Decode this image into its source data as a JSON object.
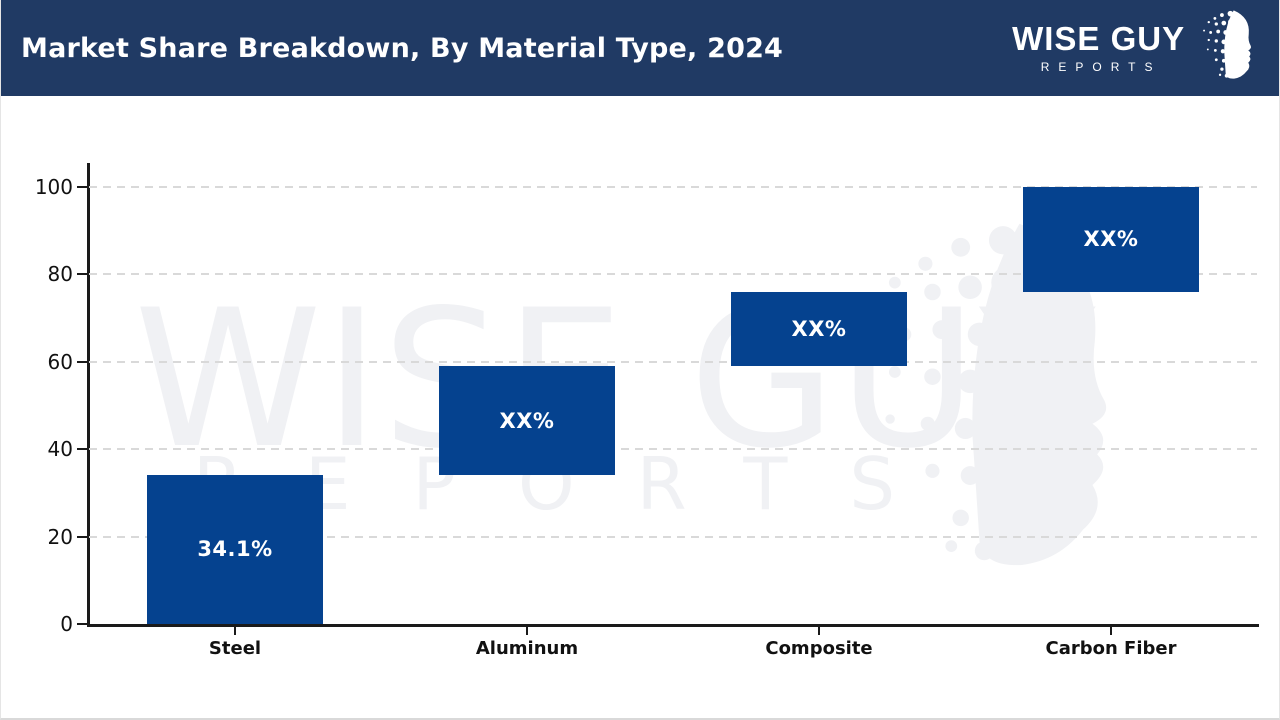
{
  "header": {
    "title": "Market Share Breakdown, By Material Type, 2024",
    "bg_color": "#203a64",
    "logo": {
      "wordmark": "WISE GUY",
      "subtitle": "REPORTS"
    }
  },
  "watermark": {
    "wordmark": "WISE GUY",
    "subtitle": "REPORTS"
  },
  "chart_data": {
    "type": "bar",
    "subtype": "waterfall",
    "title": "Market Share Breakdown, By Material Type, 2024",
    "categories": [
      "Steel",
      "Aluminum",
      "Composite",
      "Carbon Fiber"
    ],
    "segments": [
      {
        "category": "Steel",
        "start": 0,
        "end": 34.1,
        "value": 34.1,
        "label": "34.1%"
      },
      {
        "category": "Aluminum",
        "start": 34.1,
        "end": 59.0,
        "value": 24.9,
        "label": "XX%"
      },
      {
        "category": "Composite",
        "start": 59.0,
        "end": 76.0,
        "value": 17.0,
        "label": "XX%"
      },
      {
        "category": "Carbon Fiber",
        "start": 76.0,
        "end": 100.0,
        "value": 24.0,
        "label": "XX%"
      }
    ],
    "yticks": [
      0,
      20,
      40,
      60,
      80,
      100
    ],
    "ylim": [
      0,
      105
    ],
    "xlabel": "",
    "ylabel": "",
    "bar_color": "#05428F",
    "bar_label_color": "#ffffff",
    "grid": {
      "axis": "y",
      "style": "dashed",
      "color": "#d9d9d9"
    },
    "legend": null
  }
}
